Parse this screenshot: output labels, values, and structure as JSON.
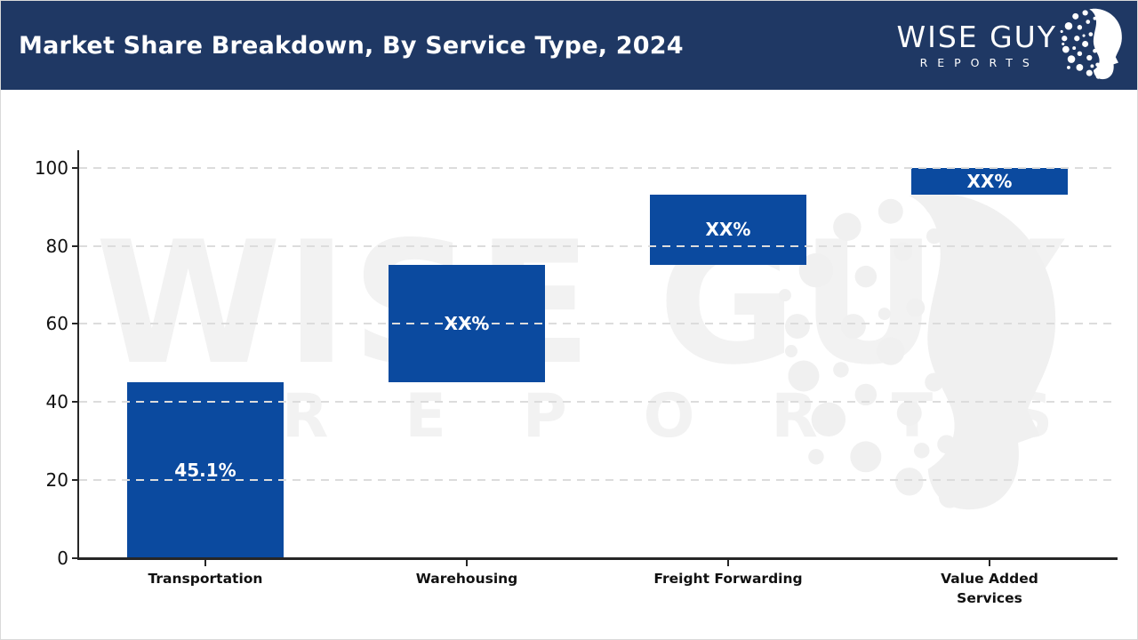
{
  "page": {
    "background": "#ffffff",
    "frame_color": "#d9d9d9"
  },
  "header": {
    "bg": "#1f3864",
    "title": "Market Share Breakdown, By Service Type, 2024",
    "logo": {
      "name_line": "WISE GUY",
      "sub_line": "REPORTS"
    }
  },
  "watermark": {
    "name_line": "WISE GUY",
    "sub_line": "REPORTS"
  },
  "chart_data": {
    "type": "bar",
    "subtype": "waterfall",
    "title": "Market Share Breakdown, By Service Type, 2024",
    "categories": [
      "Transportation",
      "Warehousing",
      "Freight Forwarding",
      "Value Added Services"
    ],
    "series": [
      {
        "name": "Market share (%)",
        "segments": [
          {
            "category": "Transportation",
            "start": 0,
            "end": 45.1,
            "label": "45.1%"
          },
          {
            "category": "Warehousing",
            "start": 45.1,
            "end": 75.2,
            "label": "XX%"
          },
          {
            "category": "Freight Forwarding",
            "start": 75.2,
            "end": 93.2,
            "label": "XX%"
          },
          {
            "category": "Value Added Services",
            "start": 93.2,
            "end": 100,
            "label": "XX%"
          }
        ]
      }
    ],
    "yticks": [
      0,
      20,
      40,
      60,
      80,
      100
    ],
    "ylim": [
      0,
      104.5
    ],
    "xlabel": "",
    "ylabel": "",
    "legend": null,
    "grid": "horizontal-dashed-above-bars",
    "colors": {
      "bar": "#0b4a9f",
      "bar_label": "#ffffff",
      "axis": "#262626",
      "grid": "#dcdcdc",
      "tick_label": "#111111"
    }
  }
}
